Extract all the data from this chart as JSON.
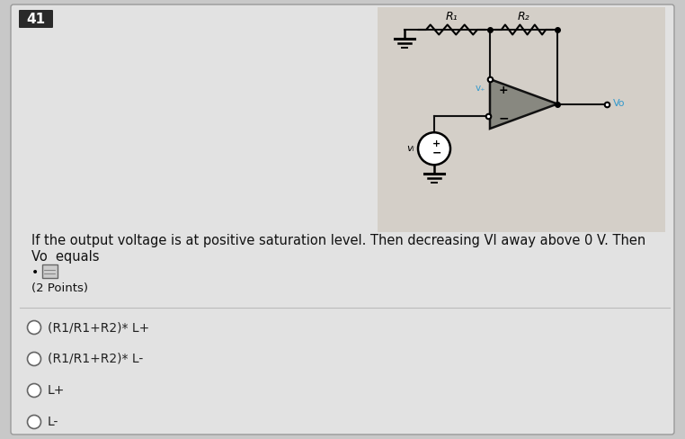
{
  "background_color": "#c8c8c8",
  "card_color": "#e2e2e2",
  "question_number": "41",
  "question_text_line1": "If the output voltage is at positive saturation level. Then decreasing VI away above 0 V. Then",
  "question_text_line2": "Vo  equals",
  "points_text": "(2 Points)",
  "options": [
    "(R1/R1+R2)* L+",
    "(R1/R1+R2)* L-",
    "L+",
    "L-"
  ],
  "title_bg": "#2a2a2a",
  "title_fg": "#ffffff",
  "circuit_bg": "#d4cfc8",
  "text_color": "#111111",
  "option_text_color": "#222222",
  "font_size_question": 10.5,
  "font_size_options": 10,
  "font_size_number": 11,
  "opamp_color": "#888880",
  "wire_color": "#111111",
  "r1_label": "R₁",
  "r2_label": "R₂",
  "vplus_label": "v₊",
  "vi_label": "vᵢ",
  "vo_label": "Vo"
}
